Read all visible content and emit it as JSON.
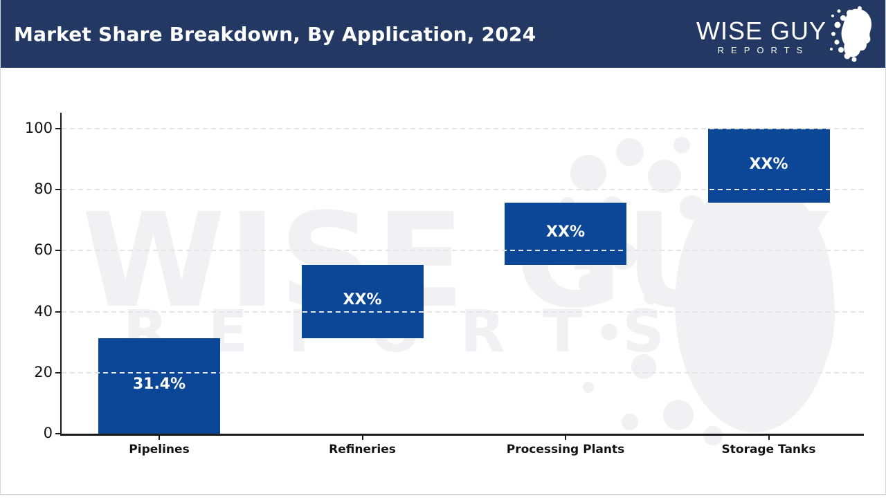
{
  "header": {
    "title": "Market Share Breakdown, By Application, 2024",
    "brand_line1": "WISE GUY",
    "brand_line2": "REPORTS",
    "bg_color": "#233863"
  },
  "watermark": {
    "line1": "WISE GUY",
    "line2": "REPORTS"
  },
  "chart_data": {
    "type": "bar",
    "variant": "waterfall",
    "title": "Market Share Breakdown, By Application, 2024",
    "categories": [
      "Pipelines",
      "Refineries",
      "Processing Plants",
      "Storage Tanks"
    ],
    "segments": [
      {
        "category": "Pipelines",
        "start": 0,
        "end": 31.4,
        "label": "31.4%"
      },
      {
        "category": "Refineries",
        "start": 31.4,
        "end": 55.3,
        "label": "XX%"
      },
      {
        "category": "Processing Plants",
        "start": 55.3,
        "end": 75.7,
        "label": "XX%"
      },
      {
        "category": "Storage Tanks",
        "start": 75.7,
        "end": 100,
        "label": "XX%"
      }
    ],
    "yticks": [
      0,
      20,
      40,
      60,
      80,
      100
    ],
    "ylim": [
      0,
      105
    ],
    "xlabel": "",
    "ylabel": "",
    "legend": "none",
    "grid": "horizontal-dashed",
    "bar_color": "#0B4697",
    "bar_label_color": "#FFFFFF",
    "gridline_color": "#E4E4E4",
    "axis_color": "#1A1A1A"
  }
}
